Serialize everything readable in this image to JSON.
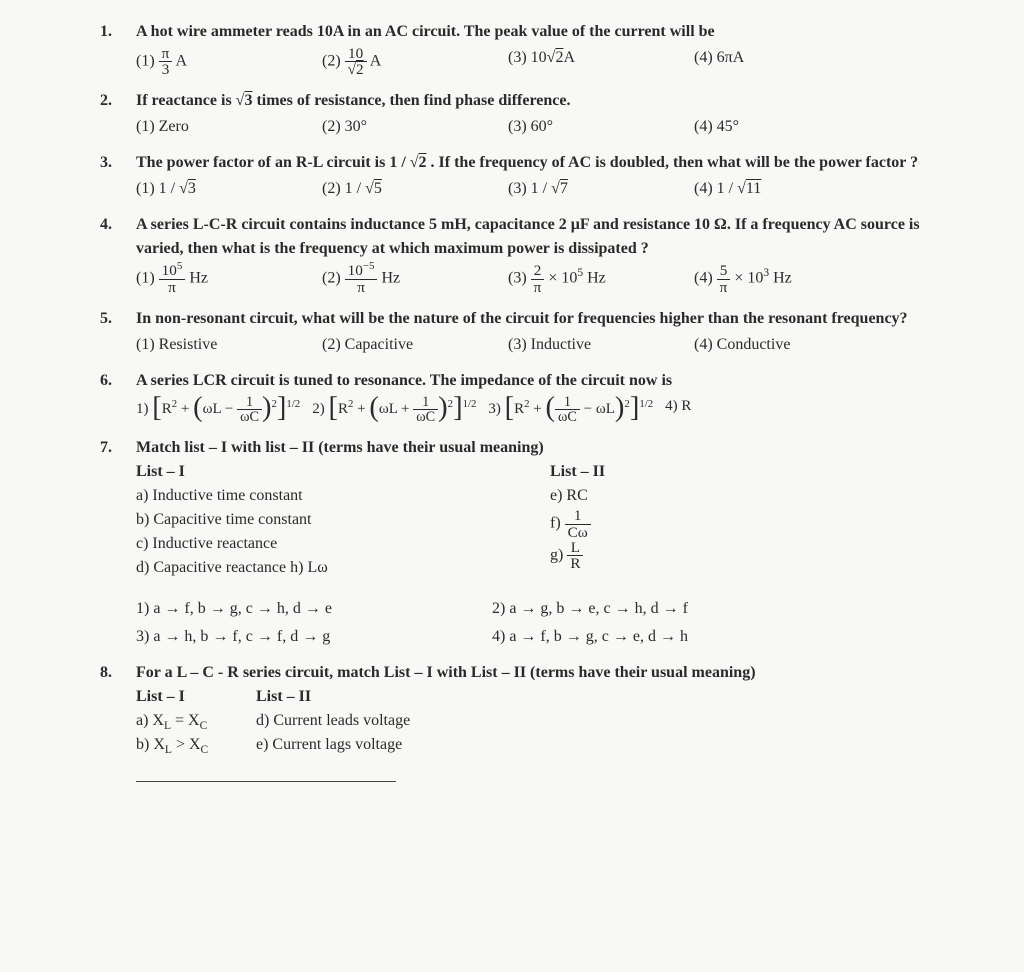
{
  "questions": [
    {
      "num": "1.",
      "text": "A hot wire ammeter reads 10A in an AC circuit. The peak value of the current will be",
      "opts": [
        "(1) ",
        "(2) ",
        "(3) 10√2 A",
        "(4) 6πA"
      ]
    },
    {
      "num": "2.",
      "text": "If reactance is √3 times of resistance, then find phase difference.",
      "opts": [
        "(1) Zero",
        "(2) 30°",
        "(3) 60°",
        "(4) 45°"
      ]
    },
    {
      "num": "3.",
      "text": "The power factor of an R-L circuit is 1 / √2 . If the frequency of AC is doubled, then what will be the power factor ?",
      "opts": [
        "(1) 1 / √3",
        "(2) 1 / √5",
        "(3) 1 / √7",
        "(4) 1 / √11"
      ]
    },
    {
      "num": "4.",
      "text": "A series L-C-R circuit contains inductance 5 mH, capacitance 2 μF and resistance 10 Ω. If a frequency AC source is varied, then what is the frequency at which maximum power is dissipated ?",
      "opts": [
        "(1) ",
        "(2) ",
        "(3) ",
        "(4) "
      ]
    },
    {
      "num": "5.",
      "text": "In non-resonant circuit, what will be the nature of the circuit for frequencies higher than the resonant frequency?",
      "opts": [
        "(1) Resistive",
        "(2) Capacitive",
        "(3) Inductive",
        "(4) Conductive"
      ]
    },
    {
      "num": "6.",
      "text": "A series LCR circuit is tuned to resonance. The impedance of the circuit now is",
      "opts": [
        "1) ",
        "2) ",
        "3) ",
        "4) R"
      ]
    },
    {
      "num": "7.",
      "text": "Match list – I with list – II (terms have their usual meaning)",
      "list1h": "List – I",
      "list2h": "List – II",
      "l1": [
        "a) Inductive time constant",
        "b) Capacitive time constant",
        "c) Inductive reactance",
        "d) Capacitive reactance   h) Lω"
      ],
      "l2": [
        "e) RC",
        "f) ",
        "g) ",
        ""
      ],
      "opts": [
        "1) a → f, b → g, c → h, d → e",
        "2) a → g, b → e, c → h, d → f",
        "3) a → h, b → f, c → f, d → g",
        "4) a → f, b → g, c → e, d → h"
      ]
    },
    {
      "num": "8.",
      "text": "For a L – C - R series circuit, match List – I with List – II (terms have their usual meaning)",
      "list1h": "List – I",
      "list2h": "List – II",
      "l1": [
        "a) Xₗ = X꜀",
        "b) Xₗ > X꜀"
      ],
      "l2": [
        "d) Current leads voltage",
        "e) Current lags voltage"
      ]
    }
  ]
}
